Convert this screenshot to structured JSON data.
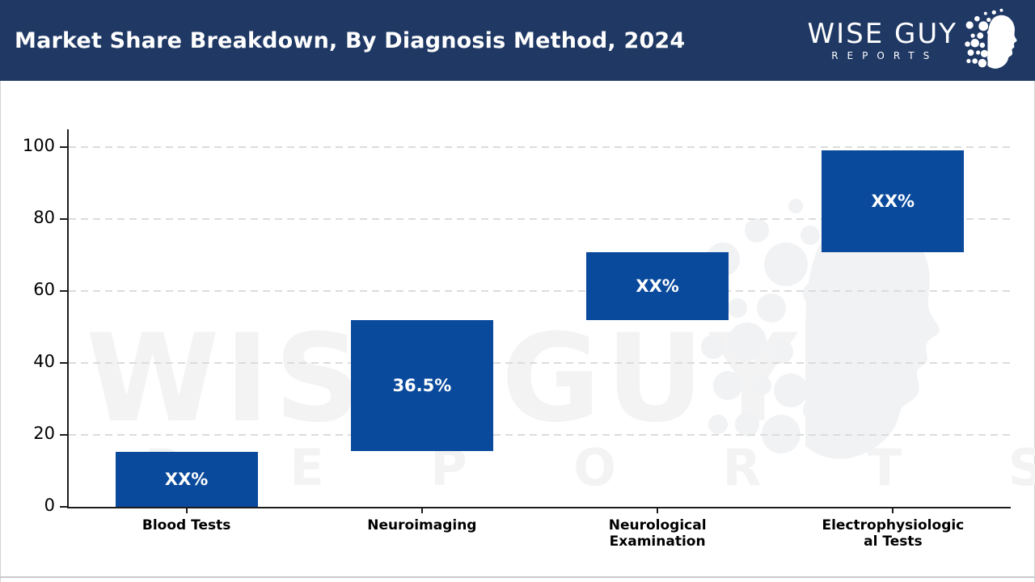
{
  "header": {
    "title": "Market Share Breakdown, By Diagnosis Method, 2024",
    "logo": {
      "line1": "WISE GUY",
      "line2": "REPORTS"
    }
  },
  "watermark": {
    "line1": "WISE GUY",
    "line2": "R E P O R T S"
  },
  "colors": {
    "header_bg": "#1f3864",
    "bar": "#0a4a9c",
    "bar_label": "#ffffff",
    "axis": "#1c1c1c",
    "gridline": "#dcdcdc"
  },
  "chart_data": {
    "type": "bar",
    "variant": "floating-waterfall",
    "title": "Market Share Breakdown, By Diagnosis Method, 2024",
    "categories": [
      "Blood Tests",
      "Neuroimaging",
      "Neurological Examination",
      "Electrophysiological Tests"
    ],
    "category_display_lines": [
      [
        "Blood Tests"
      ],
      [
        "Neuroimaging"
      ],
      [
        "Neurological",
        "Examination"
      ],
      [
        "Electrophysiologic",
        "al Tests"
      ]
    ],
    "series": [
      {
        "name": "Market Share",
        "segments": [
          {
            "category": "Blood Tests",
            "start": 0,
            "end": 15.4,
            "label": "XX%"
          },
          {
            "category": "Neuroimaging",
            "start": 15.4,
            "end": 51.9,
            "label": "36.5%"
          },
          {
            "category": "Neurological Examination",
            "start": 51.9,
            "end": 70.9,
            "label": "XX%"
          },
          {
            "category": "Electrophysiological Tests",
            "start": 70.9,
            "end": 99.2,
            "label": "XX%"
          }
        ]
      }
    ],
    "ylim": [
      0,
      105
    ],
    "yticks": [
      0,
      20,
      40,
      60,
      80,
      100
    ],
    "xlabel": "",
    "ylabel": "",
    "grid": {
      "horizontal": true,
      "style": "dashed"
    },
    "legend": "none"
  }
}
